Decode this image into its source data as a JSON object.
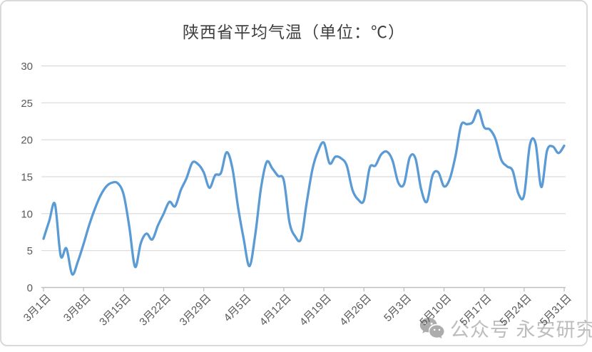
{
  "title": "陕西省平均气温（单位：℃）",
  "watermark": {
    "icon": "wechat-icon",
    "text": "公众号 永安研究"
  },
  "colors": {
    "line": "#5B9BD5",
    "gridline": "#D9D9D9",
    "axis_line": "#BFBFBF",
    "tick_label": "#595959",
    "title": "#404040",
    "watermark": "#BDBDBD",
    "frame_border": "#D9D9D9"
  },
  "chart_data": {
    "type": "line",
    "title": "陕西省平均气温（单位：℃）",
    "smooth": true,
    "grid": "horizontal",
    "legend": "none",
    "ylim": [
      0,
      30
    ],
    "y_ticks": [
      0,
      5,
      10,
      15,
      20,
      25,
      30
    ],
    "x_tick_interval_days": 7,
    "x_tick_labels": [
      "3月1日",
      "3月8日",
      "3月15日",
      "3月22日",
      "3月29日",
      "4月5日",
      "4月12日",
      "4月19日",
      "4月26日",
      "5月3日",
      "5月10日",
      "5月17日",
      "5月24日",
      "5月31日"
    ],
    "dates": [
      "3月1日",
      "3月2日",
      "3月3日",
      "3月4日",
      "3月5日",
      "3月6日",
      "3月7日",
      "3月8日",
      "3月9日",
      "3月10日",
      "3月11日",
      "3月12日",
      "3月13日",
      "3月14日",
      "3月15日",
      "3月16日",
      "3月17日",
      "3月18日",
      "3月19日",
      "3月20日",
      "3月21日",
      "3月22日",
      "3月23日",
      "3月24日",
      "3月25日",
      "3月26日",
      "3月27日",
      "3月28日",
      "3月29日",
      "3月30日",
      "3月31日",
      "4月1日",
      "4月2日",
      "4月3日",
      "4月4日",
      "4月5日",
      "4月6日",
      "4月7日",
      "4月8日",
      "4月9日",
      "4月10日",
      "4月11日",
      "4月12日",
      "4月13日",
      "4月14日",
      "4月15日",
      "4月16日",
      "4月17日",
      "4月18日",
      "4月19日",
      "4月20日",
      "4月21日",
      "4月22日",
      "4月23日",
      "4月24日",
      "4月25日",
      "4月26日",
      "4月27日",
      "4月28日",
      "4月29日",
      "4月30日",
      "5月1日",
      "5月2日",
      "5月3日",
      "5月4日",
      "5月5日",
      "5月6日",
      "5月7日",
      "5月8日",
      "5月9日",
      "5月10日",
      "5月11日",
      "5月12日",
      "5月13日",
      "5月14日",
      "5月15日",
      "5月16日",
      "5月17日",
      "5月18日",
      "5月19日",
      "5月20日",
      "5月21日",
      "5月22日",
      "5月23日",
      "5月24日",
      "5月25日",
      "5月26日",
      "5月27日",
      "5月28日",
      "5月29日",
      "5月30日",
      "5月31日"
    ],
    "values": [
      6.6,
      9.0,
      11.3,
      4.3,
      5.3,
      1.8,
      3.5,
      5.9,
      8.5,
      10.7,
      12.5,
      13.7,
      14.2,
      14.1,
      12.6,
      8.2,
      2.8,
      6.0,
      7.3,
      6.5,
      8.4,
      10.0,
      11.6,
      11.0,
      13.2,
      14.8,
      16.9,
      16.7,
      15.6,
      13.5,
      15.2,
      15.5,
      18.3,
      16.2,
      10.9,
      6.5,
      2.9,
      7.1,
      13.4,
      17.0,
      16.1,
      15.1,
      14.5,
      8.8,
      6.9,
      6.6,
      11.5,
      16.0,
      18.5,
      19.6,
      16.8,
      17.7,
      17.5,
      16.5,
      13.2,
      11.9,
      11.8,
      16.2,
      16.5,
      18.0,
      18.4,
      17.2,
      14.2,
      14.0,
      17.6,
      17.5,
      13.3,
      11.6,
      15.2,
      15.6,
      13.7,
      14.7,
      17.8,
      22.0,
      22.1,
      22.4,
      24.0,
      21.7,
      21.4,
      20.1,
      17.3,
      16.4,
      15.8,
      12.7,
      12.5,
      19.3,
      19.5,
      13.6,
      18.5,
      19.1,
      18.2,
      19.2
    ]
  }
}
